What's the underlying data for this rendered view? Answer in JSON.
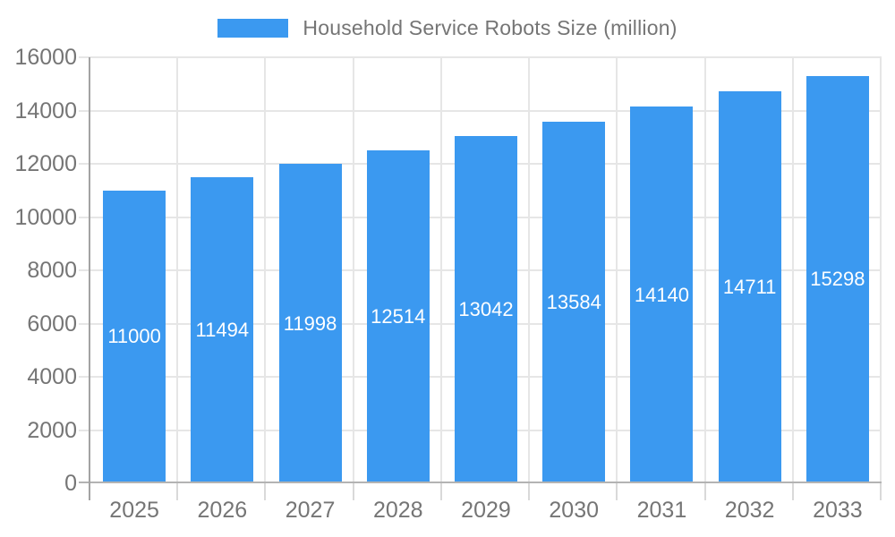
{
  "legend": {
    "label": "Household Service Robots Size (million)"
  },
  "chart_data": {
    "type": "bar",
    "title": "Household Service Robots Size (million)",
    "categories": [
      "2025",
      "2026",
      "2027",
      "2028",
      "2029",
      "2030",
      "2031",
      "2032",
      "2033"
    ],
    "values": [
      11000,
      11494,
      11998,
      12514,
      13042,
      13584,
      14140,
      14711,
      15298
    ],
    "xlabel": "",
    "ylabel": "",
    "ylim": [
      0,
      16000
    ],
    "ytick_step": 2000,
    "ytick_labels": [
      "0",
      "2000",
      "4000",
      "6000",
      "8000",
      "10000",
      "12000",
      "14000",
      "16000"
    ],
    "grid": "horizontal-and-vertical",
    "legend_position": "top-center",
    "bar_color": "#3b99f0",
    "bar_label_color": "#ffffff",
    "axis_text_color": "#757575",
    "grid_color": "#e6e6e6",
    "background_color": "#ffffff"
  }
}
